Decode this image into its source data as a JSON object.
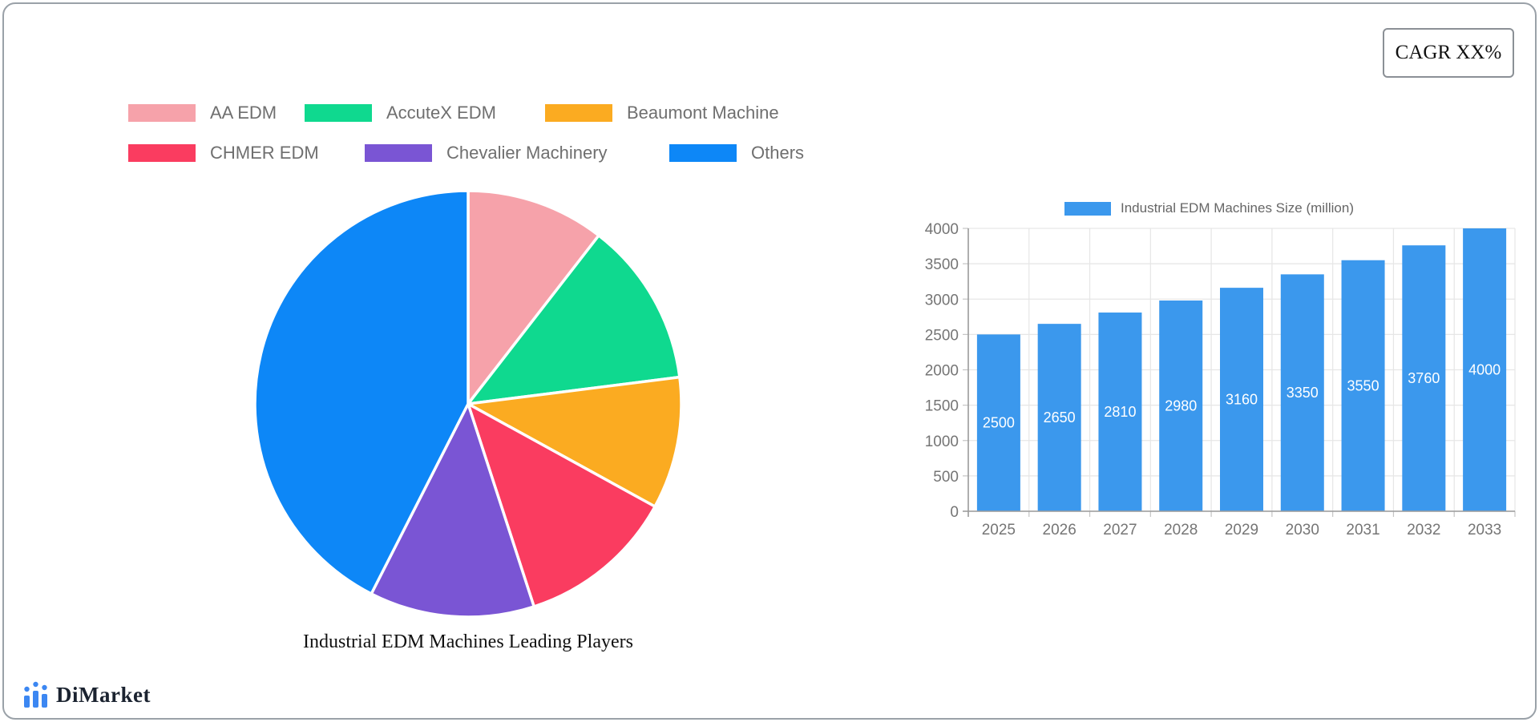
{
  "cagr_badge": {
    "label": "CAGR XX%"
  },
  "brand": {
    "name": "DiMarket"
  },
  "colors": {
    "card_border": "#9aa1a8",
    "legend_text": "#6f6f6f",
    "axis_text": "#757575",
    "grid_line": "#e6e6e6",
    "axis_line": "#9b9b9b",
    "tick_line": "#c4c4c4",
    "value_label": "#ffffff",
    "brand_blue": "#3c87f2",
    "brand_text": "#1b2330"
  },
  "chart_data": [
    {
      "type": "pie",
      "title": "Industrial EDM Machines Leading Players",
      "labels": [
        "AA EDM",
        "AccuteX EDM",
        "Beaumont Machine",
        "CHMER EDM",
        "Chevalier Machinery",
        "Others"
      ],
      "values": [
        10.5,
        12.5,
        10,
        12,
        12.5,
        42.5
      ],
      "unit": "percent-estimated-from-slice-angles",
      "colors": [
        "#f6a2aa",
        "#0fd98f",
        "#fbab21",
        "#fa3c60",
        "#7a55d4",
        "#0d87f7"
      ],
      "start_angle": "top",
      "direction": "clockwise",
      "legend_position": "top",
      "slice_gap_color": "#ffffff"
    },
    {
      "type": "bar",
      "legend_label": "Industrial EDM Machines Size (million)",
      "categories": [
        "2025",
        "2026",
        "2027",
        "2028",
        "2029",
        "2030",
        "2031",
        "2032",
        "2033"
      ],
      "values": [
        2500,
        2650,
        2810,
        2980,
        3160,
        3350,
        3550,
        3760,
        4000
      ],
      "bar_color": "#3b98ed",
      "value_labels": [
        "2500",
        "2650",
        "2810",
        "2980",
        "3160",
        "3350",
        "3550",
        "3760",
        "4000"
      ],
      "ylim": [
        0,
        4000
      ],
      "ytick_step": 500,
      "ytick_labels": [
        "0",
        "500",
        "1000",
        "1500",
        "2000",
        "2500",
        "3000",
        "3500",
        "4000"
      ],
      "grid": true,
      "legend_position": "top"
    }
  ]
}
